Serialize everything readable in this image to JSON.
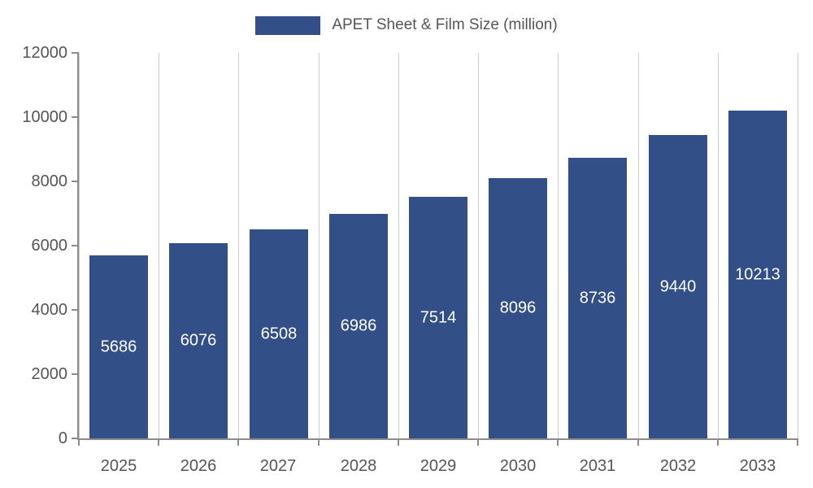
{
  "legend": {
    "label": "APET Sheet & Film Size (million)"
  },
  "chart_data": {
    "type": "bar",
    "title": "APET Sheet & Film Size (million)",
    "series_name": "APET Sheet & Film Size (million)",
    "categories": [
      "2025",
      "2026",
      "2027",
      "2028",
      "2029",
      "2030",
      "2031",
      "2032",
      "2033"
    ],
    "values": [
      5686,
      6076,
      6508,
      6986,
      7514,
      8096,
      8736,
      9440,
      10213
    ],
    "xlabel": "",
    "ylabel": "",
    "ylim": [
      0,
      12000
    ],
    "y_ticks": [
      0,
      2000,
      4000,
      6000,
      8000,
      10000,
      12000
    ],
    "grid": "vertical-category-boundaries",
    "legend_position": "top-center",
    "value_labels": "inside-center-white"
  },
  "colors": {
    "bar": "#334F87",
    "axis": "#8C8C8C",
    "grid": "#CCCCCC",
    "tick_text": "#555555",
    "legend_text": "#555555",
    "value_label_text": "#FFFFFF",
    "background": "#FFFFFF"
  }
}
